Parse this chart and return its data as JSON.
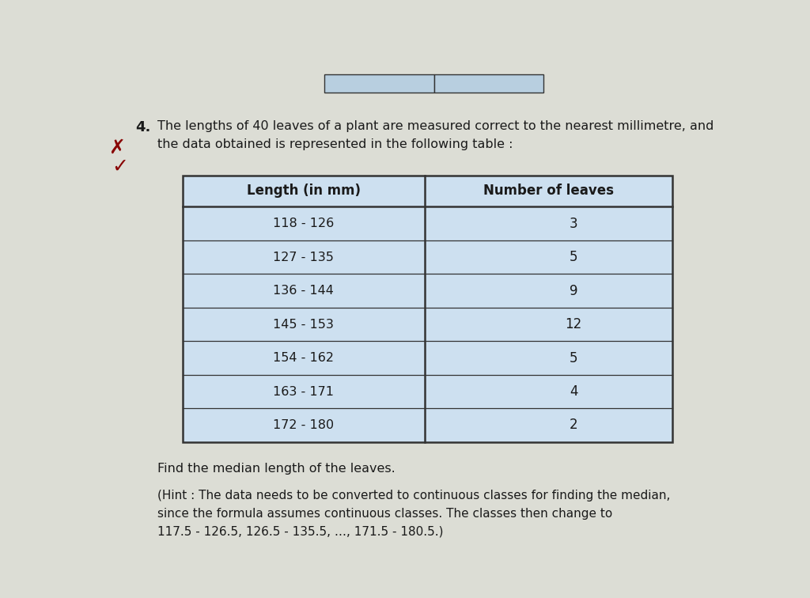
{
  "question_number": "4.",
  "question_text": "The lengths of 40 leaves of a plant are measured correct to the nearest millimetre, and\nthe data obtained is represented in the following table :",
  "col1_header": "Length (in mm)",
  "col2_header": "Number of leaves",
  "rows": [
    [
      "118 - 126",
      "3"
    ],
    [
      "127 - 135",
      "5"
    ],
    [
      "136 - 144",
      "9"
    ],
    [
      "145 - 153",
      "12"
    ],
    [
      "154 - 162",
      "5"
    ],
    [
      "163 - 171",
      "4"
    ],
    [
      "172 - 180",
      "2"
    ]
  ],
  "footer_text": "Find the median length of the leaves.",
  "hint_text": "(Hint : The data needs to be converted to continuous classes for finding the median,\nsince the formula assumes continuous classes. The classes then change to\n117.5 - 126.5, 126.5 - 135.5, …, 171.5 - 180.5.)",
  "table_bg": "#cde0f0",
  "text_color": "#1a1a1a",
  "border_color": "#333333",
  "page_bg": "#dcddd5"
}
